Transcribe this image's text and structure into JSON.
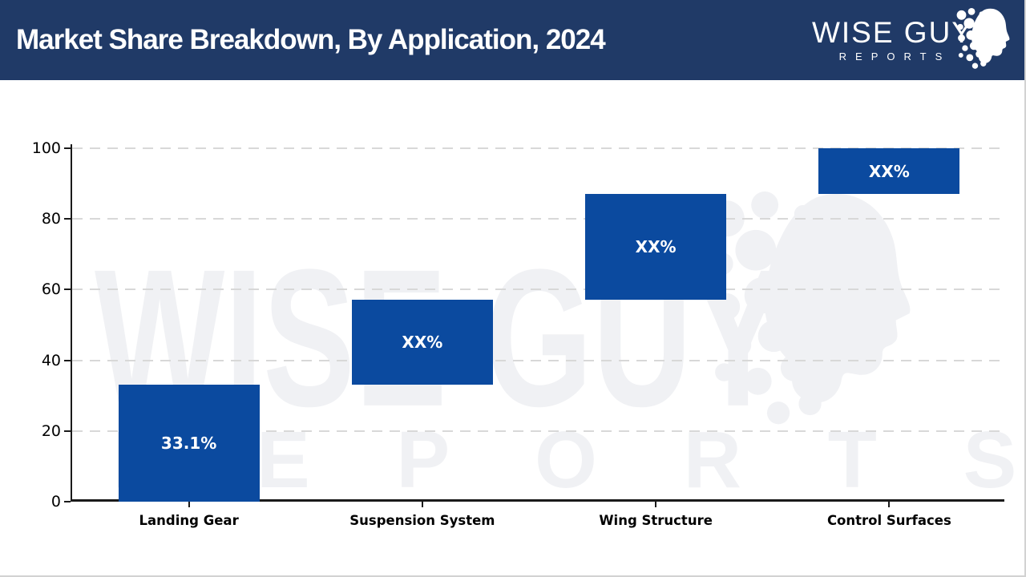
{
  "header": {
    "logo": {
      "brand": "WISE GUY",
      "sub": "REPORTS"
    }
  },
  "watermark": {
    "brand": "WISE GUY",
    "sub": "R E P O R T S"
  },
  "chart_data": {
    "type": "bar",
    "subtype": "waterfall",
    "title": "Market Share Breakdown, By Application, 2024",
    "categories": [
      "Landing Gear",
      "Suspension System",
      "Wing Structure",
      "Control Surfaces"
    ],
    "series": [
      {
        "name": "Market share (%)",
        "segments": [
          {
            "category": "Landing Gear",
            "start": 0,
            "end": 33.1,
            "label": "33.1%"
          },
          {
            "category": "Suspension System",
            "start": 33.1,
            "end": 57.2,
            "label": "XX%"
          },
          {
            "category": "Wing Structure",
            "start": 57.2,
            "end": 87.0,
            "label": "XX%"
          },
          {
            "category": "Control Surfaces",
            "start": 87.0,
            "end": 100.0,
            "label": "XX%"
          }
        ]
      }
    ],
    "xlabel": "",
    "ylabel": "",
    "yticks": [
      0,
      20,
      40,
      60,
      80,
      100
    ],
    "ylim": [
      0,
      105
    ],
    "grid": "horizontal-dashed",
    "legend": "none",
    "bar_labels_inside": true
  },
  "colors": {
    "header_bg": "#203a67",
    "bar": "#0b4a9f",
    "bar_label": "#ffffff",
    "grid": "#d8d8d8",
    "axis": "#1a1a1a",
    "watermark": "#f0f1f4",
    "title_text": "#ffffff",
    "page_bg": "#ffffff"
  }
}
